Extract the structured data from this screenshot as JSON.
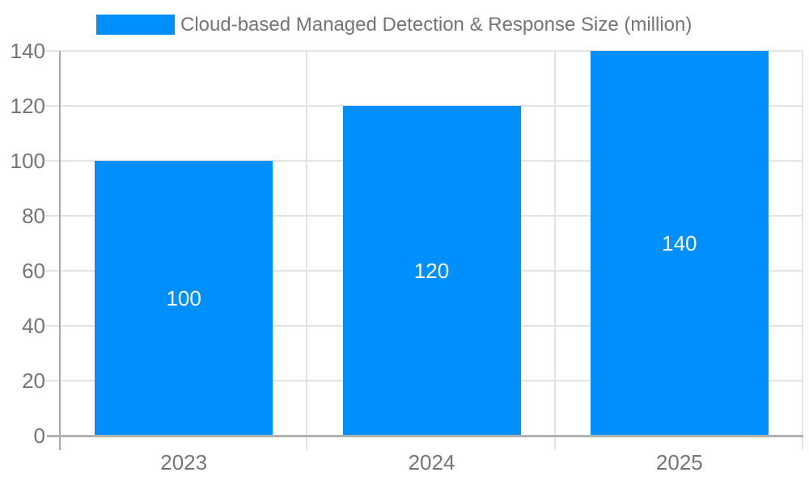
{
  "legend": {
    "label": "Cloud-based Managed Detection & Response Size (million)",
    "swatch_color": "#008FFB",
    "position": "top"
  },
  "chart_data": {
    "type": "bar",
    "title": "Cloud-based Managed Detection & Response Size (million)",
    "categories": [
      "2023",
      "2024",
      "2025"
    ],
    "values": [
      100,
      120,
      140
    ],
    "data_labels": [
      "100",
      "120",
      "140"
    ],
    "xlabel": "",
    "ylabel": "",
    "ylim": [
      0,
      140
    ],
    "yticks": [
      0,
      20,
      40,
      60,
      80,
      100,
      120,
      140
    ],
    "grid": true,
    "legend_position": "top",
    "bar_color": "#008FFB",
    "data_label_color": "#ffffff",
    "axis_label_color": "#757575",
    "gridline_color": "#e3e3e3",
    "y_axis_line_color": "#a9a9a9",
    "x_axis_line_color": "#b1b1b1",
    "background_color": "#ffffff"
  }
}
